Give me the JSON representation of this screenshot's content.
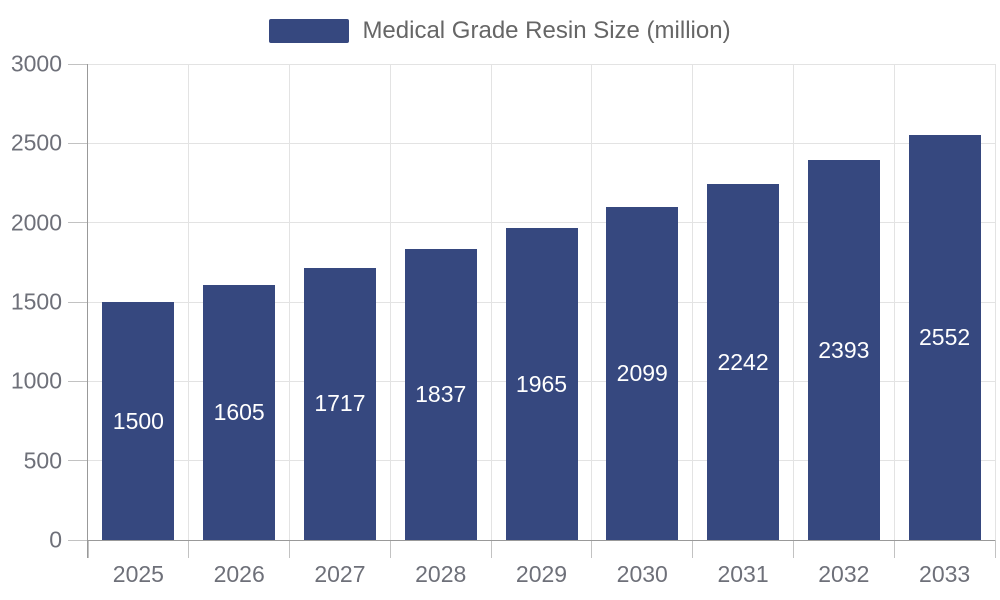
{
  "legend": {
    "label": "Medical Grade Resin Size (million)"
  },
  "colors": {
    "background": "#FFFFFF",
    "bar": "#36487F",
    "axis": "#999999",
    "tick": "#C2C2C2",
    "grid": "#E3E3E3",
    "tick_label": "#6E7079",
    "legend_label": "#666666",
    "value_label": "#FFFFFF"
  },
  "chart_data": {
    "type": "bar",
    "title": "Medical Grade Resin Size (million)",
    "categories": [
      "2025",
      "2026",
      "2027",
      "2028",
      "2029",
      "2030",
      "2031",
      "2032",
      "2033"
    ],
    "values": [
      1500,
      1605,
      1717,
      1837,
      1965,
      2099,
      2242,
      2393,
      2552
    ],
    "xlabel": "",
    "ylabel": "",
    "ylim": [
      0,
      3000
    ],
    "ytick_step": 500,
    "grid": true,
    "legend_position": "top",
    "value_label_position": "inside-center"
  }
}
